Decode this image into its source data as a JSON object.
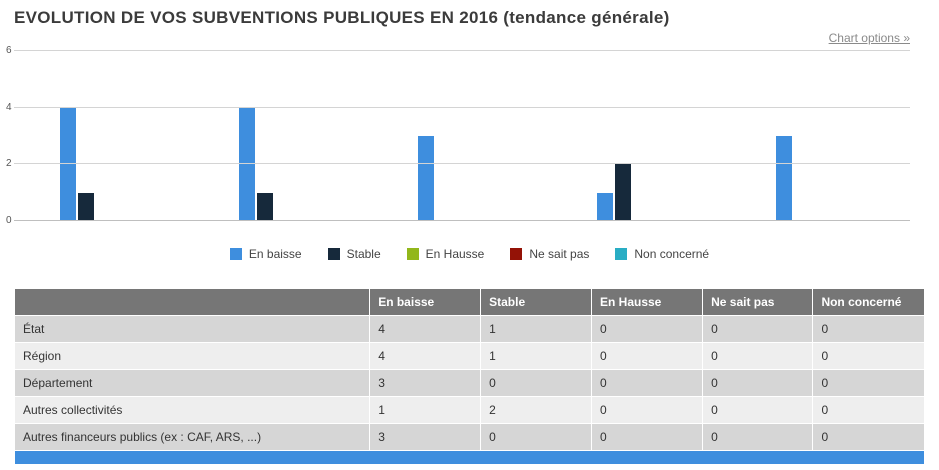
{
  "page": {
    "title": "EVOLUTION DE VOS SUBVENTIONS PUBLIQUES EN 2016 (tendance générale)",
    "chart_options_label": "Chart options »"
  },
  "colors": {
    "en_baisse_blue": "#3E8EDE",
    "stable_navy": "#16293B",
    "en_hausse_green": "#92B71B",
    "ne_sait_pas_red": "#941206",
    "non_concerne_teal": "#29ADC4",
    "table_header_grey": "#767676"
  },
  "chart_data": {
    "type": "bar",
    "title": "EVOLUTION DE VOS SUBVENTIONS PUBLIQUES EN 2016 (tendance générale)",
    "categories": [
      "État",
      "Région",
      "Département",
      "Autres collectivités",
      "Autres financeurs publics (ex : CAF, ARS, ...)"
    ],
    "series": [
      {
        "name": "En baisse",
        "color": "#3E8EDE",
        "values": [
          4,
          4,
          3,
          1,
          3
        ]
      },
      {
        "name": "Stable",
        "color": "#16293B",
        "values": [
          1,
          1,
          0,
          2,
          0
        ]
      },
      {
        "name": "En Hausse",
        "color": "#92B71B",
        "values": [
          0,
          0,
          0,
          0,
          0
        ]
      },
      {
        "name": "Ne sait pas",
        "color": "#941206",
        "values": [
          0,
          0,
          0,
          0,
          0
        ]
      },
      {
        "name": "Non concerné",
        "color": "#29ADC4",
        "values": [
          0,
          0,
          0,
          0,
          0
        ]
      }
    ],
    "xlabel": "",
    "ylabel": "",
    "ylim": [
      0,
      6
    ],
    "yticks": [
      0,
      2,
      4,
      6
    ],
    "grid": true,
    "legend_position": "bottom"
  },
  "table": {
    "columns": [
      "",
      "En baisse",
      "Stable",
      "En Hausse",
      "Ne sait pas",
      "Non concerné"
    ],
    "rows": [
      {
        "label": "État",
        "values": [
          4,
          1,
          0,
          0,
          0
        ]
      },
      {
        "label": "Région",
        "values": [
          4,
          1,
          0,
          0,
          0
        ]
      },
      {
        "label": "Département",
        "values": [
          3,
          0,
          0,
          0,
          0
        ]
      },
      {
        "label": "Autres collectivités",
        "values": [
          1,
          2,
          0,
          0,
          0
        ]
      },
      {
        "label": "Autres financeurs publics (ex : CAF, ARS, ...)",
        "values": [
          3,
          0,
          0,
          0,
          0
        ]
      }
    ]
  }
}
